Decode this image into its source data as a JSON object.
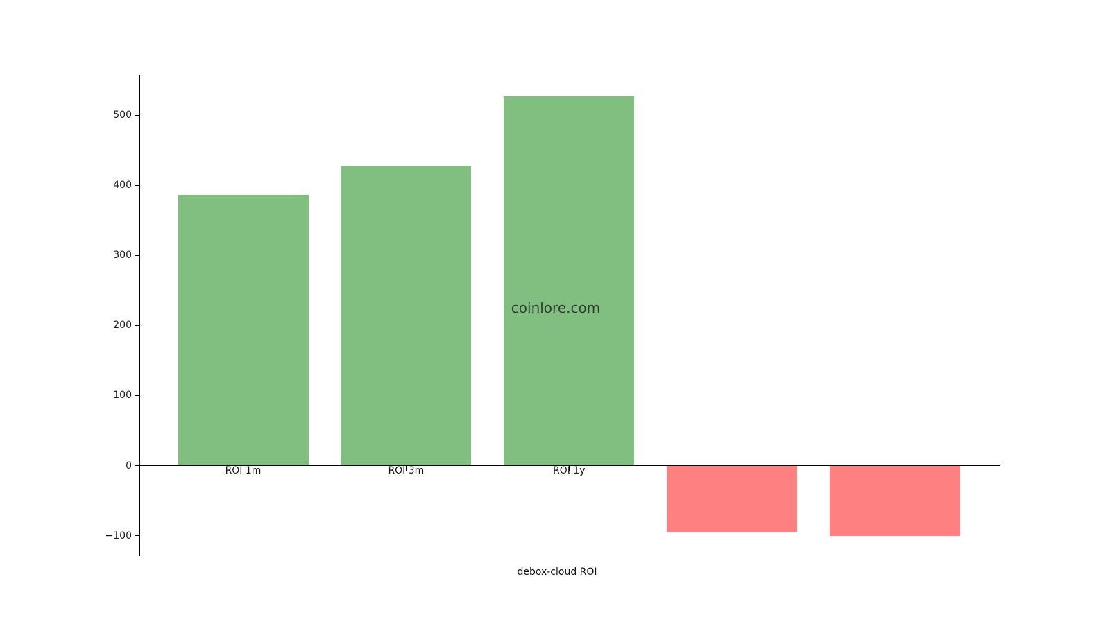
{
  "chart_data": {
    "type": "bar",
    "categories": [
      "ROI 1m",
      "ROI 3m",
      "ROI 1y",
      "",
      ""
    ],
    "values": [
      386,
      427,
      527,
      -95,
      -100
    ],
    "series_note": "green bars = positive ROI, red bars = negative ROI; last two bars have no visible category labels",
    "title": "",
    "xlabel": "debox-cloud ROI",
    "ylabel": "",
    "yticks": [
      500,
      400,
      300,
      200,
      100,
      0,
      -100
    ],
    "ylim": [
      -132,
      560
    ],
    "grid": false,
    "legend": false,
    "watermark": "coinlore.com",
    "positive_color": "#80BF80",
    "negative_color": "#FF8080",
    "axis_color": "#000000",
    "tick_label_color": "#1a1a1a"
  }
}
